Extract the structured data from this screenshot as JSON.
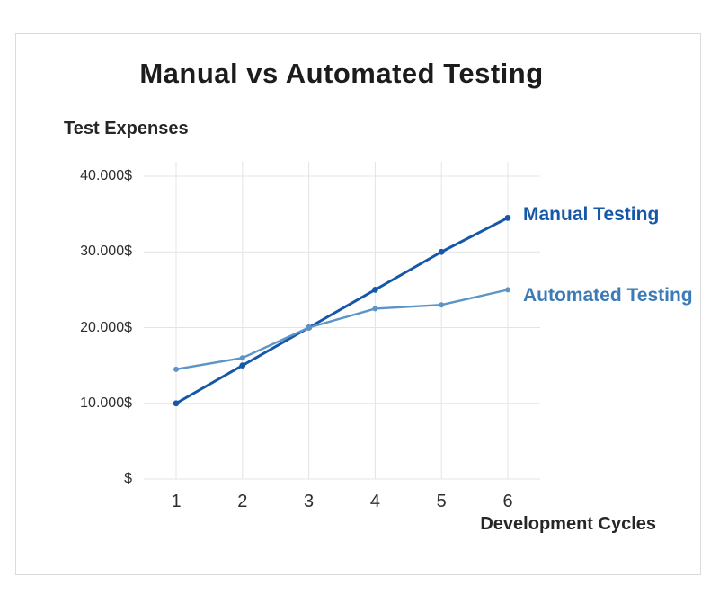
{
  "page": {
    "background_color": "#ffffff",
    "frame_border_color": "#dbdbdb"
  },
  "chart_data": {
    "type": "line",
    "title": "Manual vs Automated Testing",
    "ylabel": "Test Expenses",
    "xlabel": "Development Cycles",
    "x": [
      1,
      2,
      3,
      4,
      5,
      6
    ],
    "x_tick_labels": [
      "1",
      "2",
      "3",
      "4",
      "5",
      "6"
    ],
    "y_ticks": [
      {
        "value": 40000,
        "label": "40.000$"
      },
      {
        "value": 30000,
        "label": "30.000$"
      },
      {
        "value": 20000,
        "label": "20.000$"
      },
      {
        "value": 10000,
        "label": "10.000$"
      },
      {
        "value": 0,
        "label": "$"
      }
    ],
    "ylim": [
      0,
      40000
    ],
    "grid": true,
    "gridline_color": "#e4e4e4",
    "legend_position": "line-end-labels",
    "series": [
      {
        "name": "Manual Testing",
        "color": "#1658a8",
        "label_color": "#1658a8",
        "line_width": 3,
        "values": [
          10000,
          15000,
          20000,
          25000,
          30000,
          34500
        ]
      },
      {
        "name": "Automated Testing",
        "color": "#5d94c6",
        "label_color": "#3c7bb5",
        "line_width": 2.4,
        "values": [
          14500,
          16000,
          20000,
          22500,
          23000,
          25000
        ]
      }
    ]
  }
}
